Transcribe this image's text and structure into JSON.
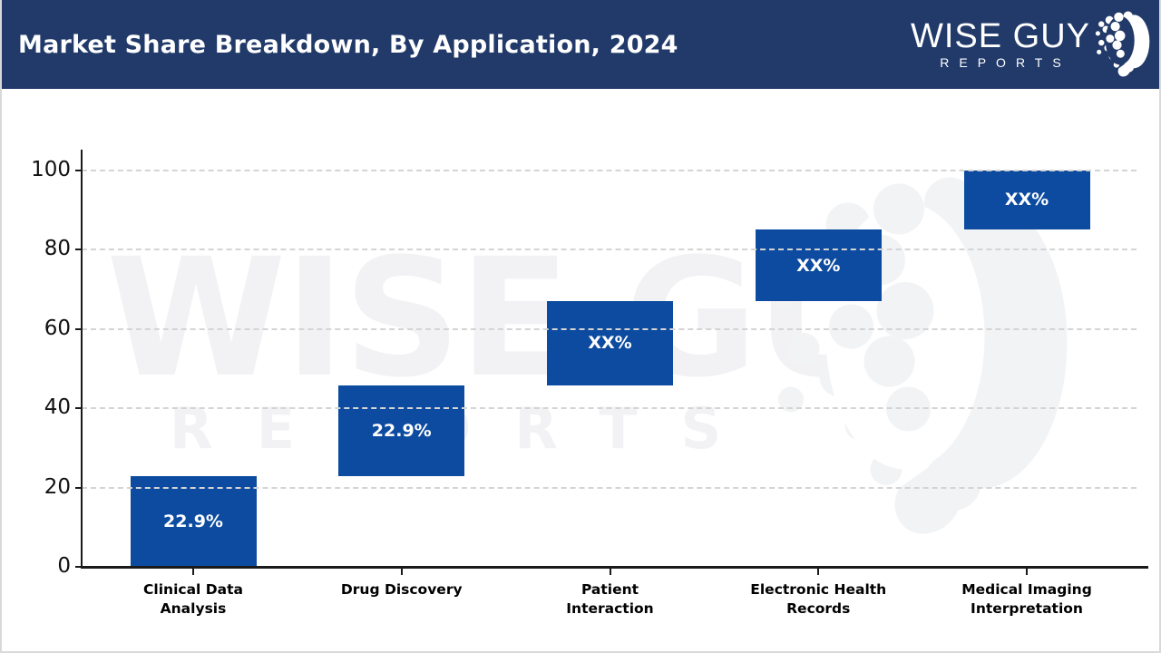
{
  "header": {
    "title": "Market Share Breakdown, By Application, 2024",
    "background_color": "#213A69",
    "logo": {
      "brand_top": "WISE GUY",
      "brand_bottom": "REPORTS"
    }
  },
  "watermark": {
    "line1": "WISE GUY",
    "line2": "REPORTS",
    "color": "#f2f2f5"
  },
  "chart_data": {
    "type": "bar",
    "subtype": "waterfall",
    "title": "Market Share Breakdown, By Application, 2024",
    "categories": [
      "Clinical Data\nAnalysis",
      "Drug Discovery",
      "Patient\nInteraction",
      "Electronic Health\nRecords",
      "Medical Imaging\nInterpretation"
    ],
    "bars": [
      {
        "category": "Clinical Data Analysis",
        "start": 0,
        "end": 22.9,
        "label": "22.9%"
      },
      {
        "category": "Drug Discovery",
        "start": 22.9,
        "end": 45.8,
        "label": "22.9%"
      },
      {
        "category": "Patient Interaction",
        "start": 45.8,
        "end": 67,
        "label": "XX%"
      },
      {
        "category": "Electronic Health Records",
        "start": 67,
        "end": 85,
        "label": "XX%"
      },
      {
        "category": "Medical Imaging Interpretation",
        "start": 85,
        "end": 100,
        "label": "XX%"
      }
    ],
    "ylim": [
      0,
      100
    ],
    "yticks": [
      0,
      20,
      40,
      60,
      80,
      100
    ],
    "grid": "horizontal dashed, drawn over bars",
    "legend": "none",
    "bar_color": "#0C4B9F",
    "bar_label_color": "#ffffff",
    "gridline_color": "#d4d4d4",
    "axis_color": "#1a1a1a"
  }
}
